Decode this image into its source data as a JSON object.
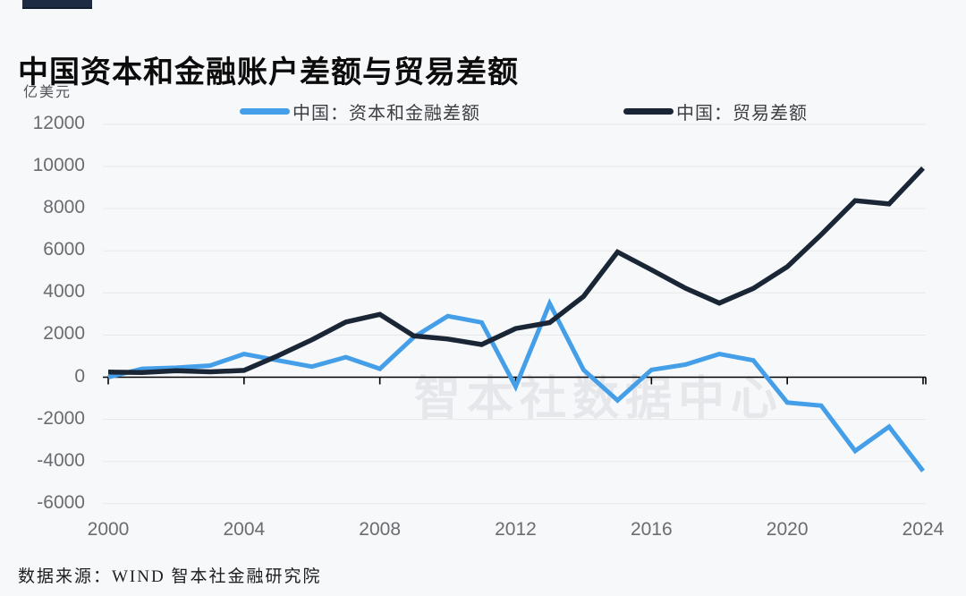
{
  "header": {
    "title": "中国资本和金融账户差额与贸易差额"
  },
  "unit_label": "亿美元",
  "legend": [
    {
      "label": "中国：资本和金融差额",
      "color": "#459fe8"
    },
    {
      "label": "中国：贸易差额",
      "color": "#1a2636"
    }
  ],
  "watermark": "智本社数据中心",
  "footer": {
    "source": "数据来源：WIND 智本社金融研究院"
  },
  "colors": {
    "background": "#f7f8fa",
    "gridline": "#e6e7ea",
    "axis_line": "#000000",
    "axis_text": "#6b6c70",
    "series_capital": "#459fe8",
    "series_trade": "#1a2636",
    "accent_bar": "#1d2c42"
  },
  "chart_data": {
    "type": "line",
    "title": "中国资本和金融账户差额与贸易差额",
    "xlabel": "",
    "ylabel": "亿美元",
    "x": [
      2000,
      2001,
      2002,
      2003,
      2004,
      2005,
      2006,
      2007,
      2008,
      2009,
      2010,
      2011,
      2012,
      2013,
      2014,
      2015,
      2016,
      2017,
      2018,
      2019,
      2020,
      2021,
      2022,
      2023,
      2024
    ],
    "series": [
      {
        "name": "中国：资本和金融差额",
        "color": "#459fe8",
        "values": [
          0,
          400,
          450,
          550,
          1100,
          800,
          500,
          950,
          400,
          1900,
          2900,
          2600,
          -450,
          3500,
          350,
          -1100,
          350,
          600,
          1100,
          800,
          -1200,
          -1350,
          -3500,
          -2350,
          -4450
        ]
      },
      {
        "name": "中国：贸易差额",
        "color": "#1a2636",
        "values": [
          241,
          226,
          304,
          255,
          321,
          1020,
          1775,
          2618,
          2981,
          1961,
          1815,
          1549,
          2311,
          2590,
          3831,
          5939,
          5097,
          4225,
          3518,
          4211,
          5240,
          6765,
          8380,
          8221,
          9921
        ]
      }
    ],
    "ylim": [
      -6000,
      12000
    ],
    "yticks": [
      12000,
      10000,
      8000,
      6000,
      4000,
      2000,
      0,
      -2000,
      -4000,
      -6000
    ],
    "xticks": [
      2000,
      2004,
      2008,
      2012,
      2016,
      2020,
      2024
    ],
    "grid": "horizontal",
    "legend_position": "top"
  }
}
